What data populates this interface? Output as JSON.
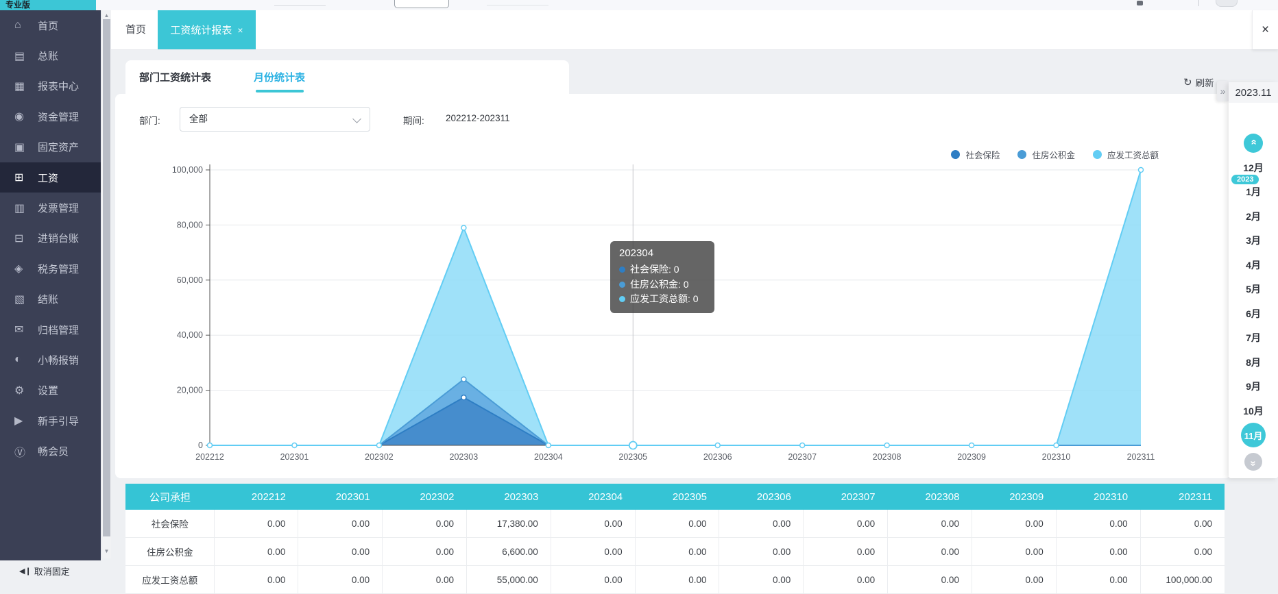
{
  "top_bar": {
    "brand": "专业版"
  },
  "sidebar": {
    "items": [
      {
        "label": "首页",
        "icon": "home-icon"
      },
      {
        "label": "总账",
        "icon": "general-ledger-icon"
      },
      {
        "label": "报表中心",
        "icon": "report-center-icon"
      },
      {
        "label": "资金管理",
        "icon": "fund-management-icon"
      },
      {
        "label": "固定资产",
        "icon": "fixed-assets-icon"
      },
      {
        "label": "工资",
        "icon": "salary-icon",
        "active": true
      },
      {
        "label": "发票管理",
        "icon": "invoice-management-icon"
      },
      {
        "label": "进销台账",
        "icon": "purchase-sales-ledger-icon"
      },
      {
        "label": "税务管理",
        "icon": "tax-management-icon"
      },
      {
        "label": "结账",
        "icon": "closing-icon"
      },
      {
        "label": "归档管理",
        "icon": "archive-management-icon"
      },
      {
        "label": "小畅报销",
        "icon": "reimburse-icon"
      },
      {
        "label": "设置",
        "icon": "settings-icon"
      },
      {
        "label": "新手引导",
        "icon": "beginner-guide-icon"
      },
      {
        "label": "畅会员",
        "icon": "member-icon"
      }
    ],
    "pin_toggle_label": "取消固定"
  },
  "tab_bar": {
    "home_tab": "首页",
    "active_tab": "工资统计报表",
    "tab_close_icon": "×",
    "panel_close_icon": "×"
  },
  "sub_tabs": {
    "dept_tab": "部门工资统计表",
    "month_tab": "月份统计表"
  },
  "toolbar": {
    "refresh_label": "刷新"
  },
  "filters": {
    "department_label": "部门:",
    "department_value": "全部",
    "period_label": "期间:",
    "period_value": "202212-202311"
  },
  "chart_data": {
    "type": "area",
    "stacked": true,
    "x": [
      "202212",
      "202301",
      "202302",
      "202303",
      "202304",
      "202305",
      "202306",
      "202307",
      "202308",
      "202309",
      "202310",
      "202311"
    ],
    "series": [
      {
        "name": "社会保险",
        "color": "#2e7ec4",
        "fill": "#4289ca",
        "fill_opacity": 0.9,
        "values": [
          0,
          0,
          0,
          17380,
          0,
          0,
          0,
          0,
          0,
          0,
          0,
          0
        ]
      },
      {
        "name": "住房公积金",
        "color": "#4a9cd6",
        "fill": "#63abe0",
        "fill_opacity": 0.9,
        "values": [
          0,
          0,
          0,
          6600,
          0,
          0,
          0,
          0,
          0,
          0,
          0,
          0
        ]
      },
      {
        "name": "应发工资总额",
        "color": "#62cdf4",
        "fill": "#8edcf8",
        "fill_opacity": 0.85,
        "values": [
          0,
          0,
          0,
          55000,
          0,
          0,
          0,
          0,
          0,
          0,
          0,
          100000
        ]
      }
    ],
    "ylim": [
      0,
      100000
    ],
    "yticks": [
      0,
      20000,
      40000,
      60000,
      80000,
      100000
    ],
    "grid": true,
    "legend_position": "top-right",
    "crosshair_x": "202305"
  },
  "tooltip": {
    "title": "202304",
    "rows": [
      {
        "name": "社会保险",
        "value": "0"
      },
      {
        "name": "住房公积金",
        "value": "0"
      },
      {
        "name": "应发工资总额",
        "value": "0"
      }
    ]
  },
  "table": {
    "headers": [
      "公司承担",
      "202212",
      "202301",
      "202302",
      "202303",
      "202304",
      "202305",
      "202306",
      "202307",
      "202308",
      "202309",
      "202310",
      "202311"
    ],
    "rows": [
      {
        "label": "社会保险",
        "values": [
          "0.00",
          "0.00",
          "0.00",
          "17,380.00",
          "0.00",
          "0.00",
          "0.00",
          "0.00",
          "0.00",
          "0.00",
          "0.00",
          "0.00"
        ]
      },
      {
        "label": "住房公积金",
        "values": [
          "0.00",
          "0.00",
          "0.00",
          "6,600.00",
          "0.00",
          "0.00",
          "0.00",
          "0.00",
          "0.00",
          "0.00",
          "0.00",
          "0.00"
        ]
      },
      {
        "label": "应发工资总额",
        "values": [
          "0.00",
          "0.00",
          "0.00",
          "55,000.00",
          "0.00",
          "0.00",
          "0.00",
          "0.00",
          "0.00",
          "0.00",
          "0.00",
          "100,000.00"
        ]
      }
    ]
  },
  "month_nav": {
    "current_period": "2023.11",
    "year_badge": "2023",
    "months": [
      "12月",
      "1月",
      "2月",
      "3月",
      "4月",
      "5月",
      "6月",
      "7月",
      "8月",
      "9月",
      "10月",
      "11月"
    ],
    "selected_month": "11月"
  },
  "colors": {
    "brand": "#3cc6d6",
    "sidebar_bg": "#3b4055",
    "sidebar_active_bg": "#23273a",
    "table_header_bg": "#35c4d5",
    "series_social_insurance": "#2e7ec4",
    "series_housing_fund": "#4a9cd6",
    "series_payable_total": "#7fd8f6"
  }
}
